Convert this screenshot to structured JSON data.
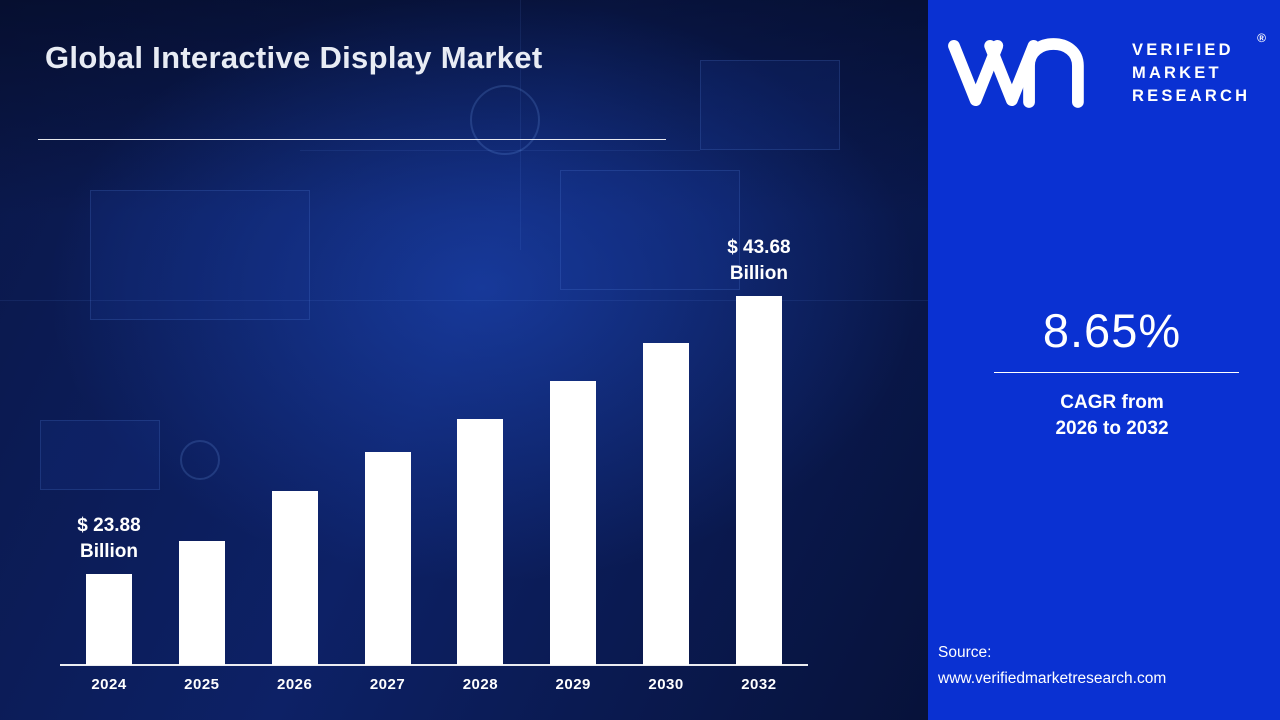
{
  "title": "Global Interactive Display Market",
  "chart_data": {
    "type": "bar",
    "categories": [
      "2024",
      "2025",
      "2026",
      "2027",
      "2028",
      "2029",
      "2030",
      "2032"
    ],
    "values": [
      23.88,
      26.2,
      29.8,
      32.6,
      34.9,
      37.6,
      40.3,
      43.68
    ],
    "unit": "$ Billion",
    "title": "Global Interactive Display Market",
    "xlabel": "",
    "ylabel": "",
    "y_axis_visible": false,
    "grid": false,
    "legend": "none",
    "bar_color": "#ffffff",
    "annotations": [
      {
        "index": 0,
        "line1": "$ 23.88",
        "line2": "Billion"
      },
      {
        "index": 7,
        "line1": "$ 43.68",
        "line2": "Billion"
      }
    ]
  },
  "panel": {
    "logo": {
      "icon": "vmr-monogram-icon",
      "lines": [
        "VERIFIED",
        "MARKET",
        "RESEARCH"
      ],
      "registered": "®"
    },
    "cagr_value": "8.65%",
    "cagr_caption_line1": "CAGR from",
    "cagr_caption_line2": "2026 to 2032",
    "source_label": "Source:",
    "source_url": "www.verifiedmarketresearch.com"
  },
  "colors": {
    "panel_blue": "#0a31d2",
    "background_navy": "#0d2166",
    "bar_white": "#ffffff",
    "text_white": "#ffffff"
  }
}
